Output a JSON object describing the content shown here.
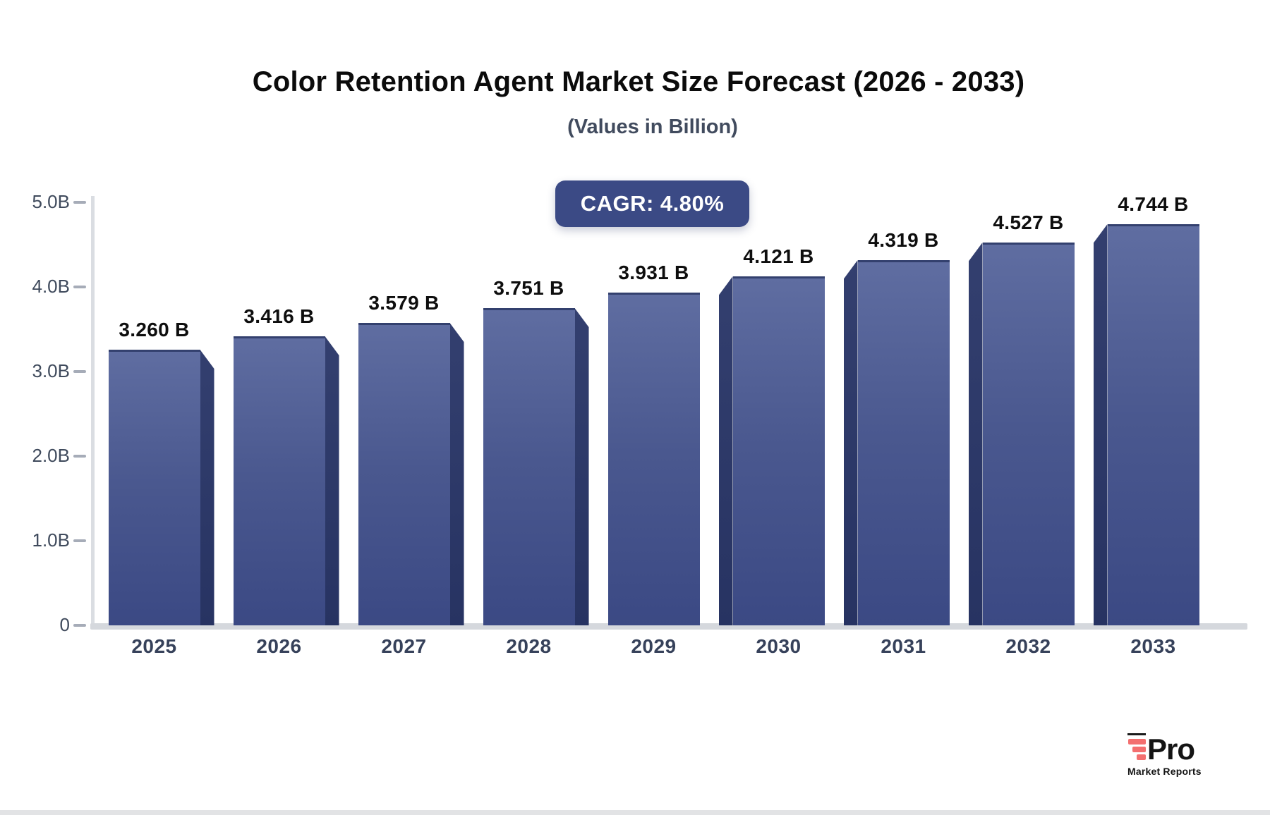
{
  "title": "Color Retention Agent Market Size Forecast (2026 - 2033)",
  "subtitle": "(Values in Billion)",
  "badge": {
    "label": "CAGR: 4.80%"
  },
  "chart_data": {
    "type": "bar",
    "categories": [
      "2025",
      "2026",
      "2027",
      "2028",
      "2029",
      "2030",
      "2031",
      "2032",
      "2033"
    ],
    "values": [
      3.26,
      3.416,
      3.579,
      3.751,
      3.931,
      4.121,
      4.319,
      4.527,
      4.744
    ],
    "value_labels": [
      "3.260 B",
      "3.416 B",
      "3.579 B",
      "3.751 B",
      "3.931 B",
      "4.121 B",
      "4.319 B",
      "4.527 B",
      "4.744 B"
    ],
    "title": "Color Retention Agent Market Size Forecast (2026 - 2033)",
    "subtitle": "(Values in Billion)",
    "annotation": "CAGR: 4.80%",
    "xlabel": "",
    "ylabel": "",
    "ylim": [
      0,
      5
    ],
    "yticks": [
      {
        "label": "5.0B",
        "value": 5.0
      },
      {
        "label": "4.0B",
        "value": 4.0
      },
      {
        "label": "3.0B",
        "value": 3.0
      },
      {
        "label": "2.0B",
        "value": 2.0
      },
      {
        "label": "1.0B",
        "value": 1.0
      },
      {
        "label": "0",
        "value": 0.0
      }
    ],
    "grid": false,
    "legend": false,
    "style": "3d-bars, perspective toward center"
  },
  "colors": {
    "bar_top": "#5f6da1",
    "bar_bottom": "#3b4984",
    "bar_side": "#273362",
    "badge_bg": "#3b4a85",
    "axis_text": "#3f4a5c",
    "x_label_text": "#36415a",
    "baseline": "#d5d8dd",
    "logo_accent": "#f36f6f"
  },
  "logo": {
    "brand": "Pro",
    "sub": "Market Reports"
  }
}
